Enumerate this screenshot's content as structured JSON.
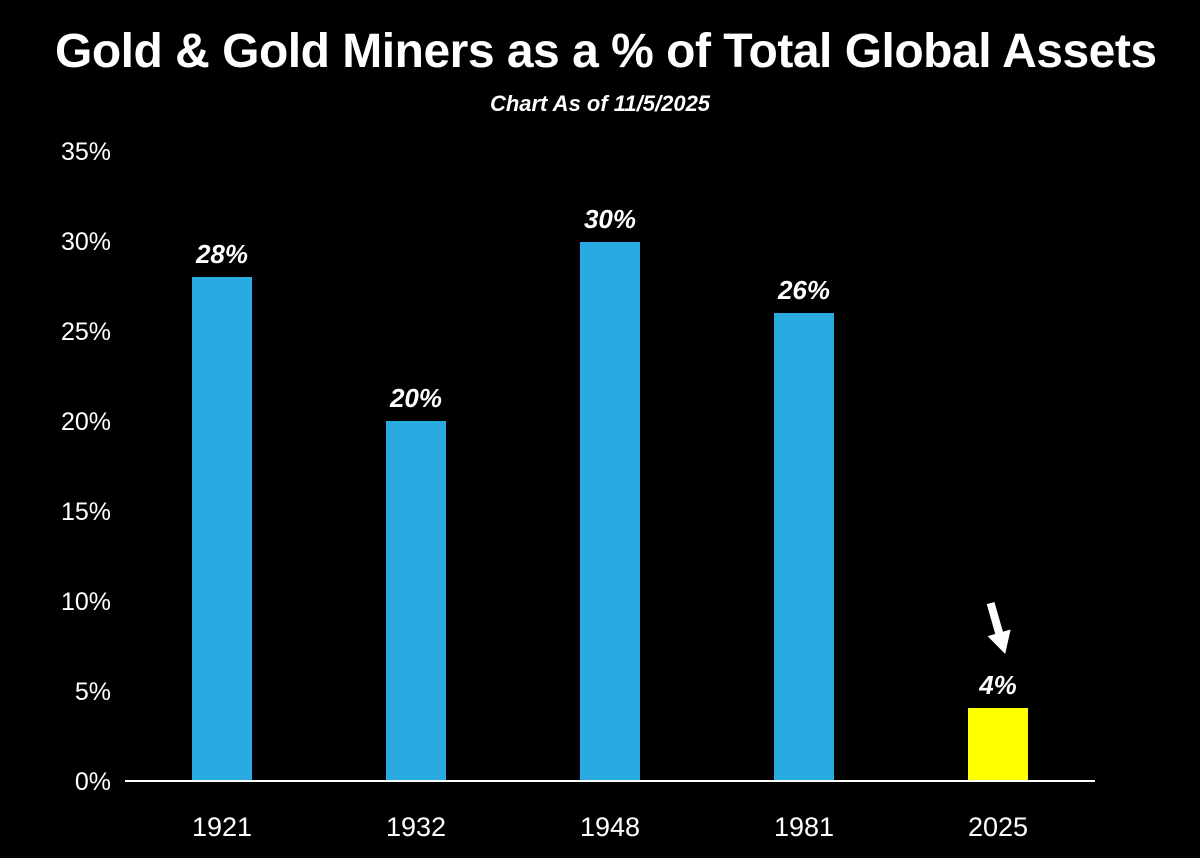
{
  "chart_data": {
    "type": "bar",
    "title": "Gold & Gold Miners as a % of Total Global Assets",
    "subtitle": "Chart As of 11/5/2025",
    "categories": [
      "1921",
      "1932",
      "1948",
      "1981",
      "2025"
    ],
    "values": [
      28,
      20,
      30,
      26,
      4
    ],
    "value_labels": [
      "28%",
      "20%",
      "30%",
      "26%",
      "4%"
    ],
    "bar_colors": [
      "#29ABE2",
      "#29ABE2",
      "#29ABE2",
      "#29ABE2",
      "#FFFF00"
    ],
    "ylim": [
      0,
      35
    ],
    "yticks": [
      {
        "value": 0,
        "label": "0%"
      },
      {
        "value": 5,
        "label": "5%"
      },
      {
        "value": 10,
        "label": "10%"
      },
      {
        "value": 15,
        "label": "15%"
      },
      {
        "value": 20,
        "label": "20%"
      },
      {
        "value": 25,
        "label": "25%"
      },
      {
        "value": 30,
        "label": "30%"
      },
      {
        "value": 35,
        "label": "35%"
      }
    ],
    "grid": false,
    "legend": false,
    "background_color": "#000000",
    "text_color": "#FFFFFF",
    "axis_color": "#FFFFFF",
    "annotation": {
      "type": "down-arrow",
      "target_category": "2025",
      "color": "#FFFFFF"
    }
  }
}
